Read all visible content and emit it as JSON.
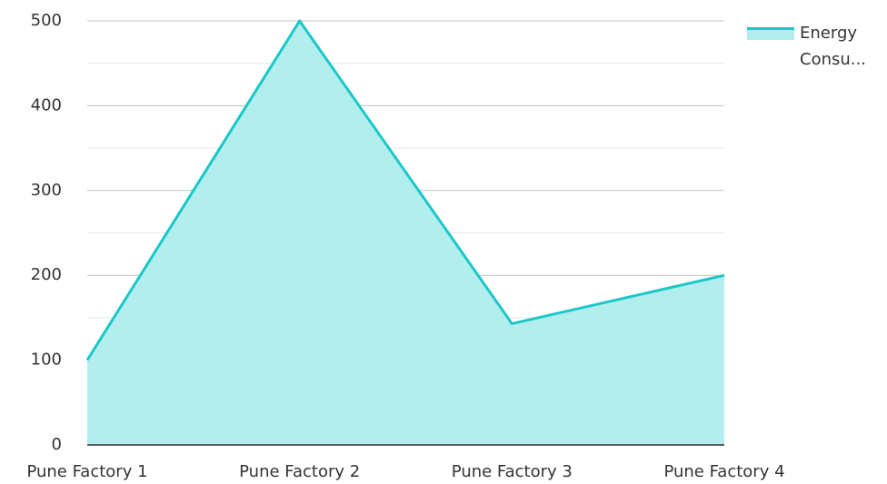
{
  "chart_data": {
    "type": "area",
    "categories": [
      "Pune Factory 1",
      "Pune Factory 2",
      "Pune Factory 3",
      "Pune Factory 4"
    ],
    "series": [
      {
        "name": "Energy Consu...",
        "color": "#1cc7c7",
        "fill": "#b2eeee",
        "values": [
          100,
          500,
          143,
          200
        ]
      }
    ],
    "ylim": [
      0,
      500
    ],
    "yticks": [
      0,
      100,
      200,
      300,
      400,
      500
    ],
    "minor_yticks": [
      50,
      150,
      250,
      350,
      450
    ],
    "grid": true,
    "legend": "top-right"
  }
}
